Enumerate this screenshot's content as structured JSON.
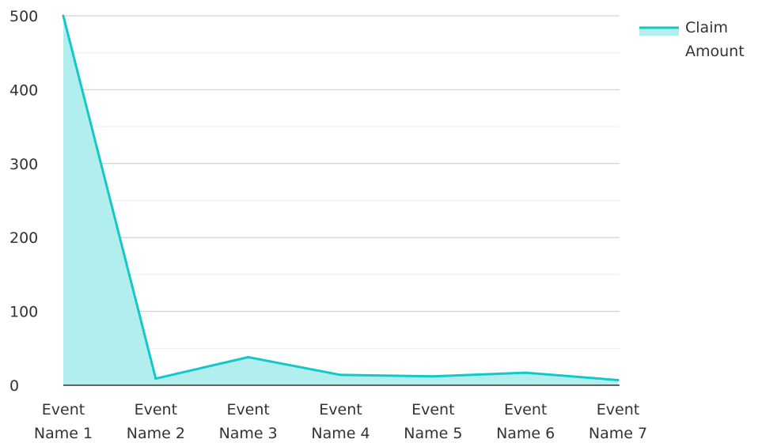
{
  "chart_data": {
    "type": "area",
    "categories": [
      "Event Name 1",
      "Event Name 2",
      "Event Name 3",
      "Event Name 4",
      "Event Name 5",
      "Event Name 6",
      "Event Name 7"
    ],
    "series": [
      {
        "name": "Claim Amount",
        "values": [
          500,
          9,
          38,
          14,
          12,
          17,
          7
        ],
        "color": "#14c8c8",
        "fill": "#b3eeee"
      }
    ],
    "ylim": [
      0,
      500
    ],
    "yticks": [
      0,
      100,
      200,
      300,
      400,
      500
    ],
    "grid": true,
    "legend": "top-right",
    "title": "",
    "xlabel": "",
    "ylabel": ""
  }
}
